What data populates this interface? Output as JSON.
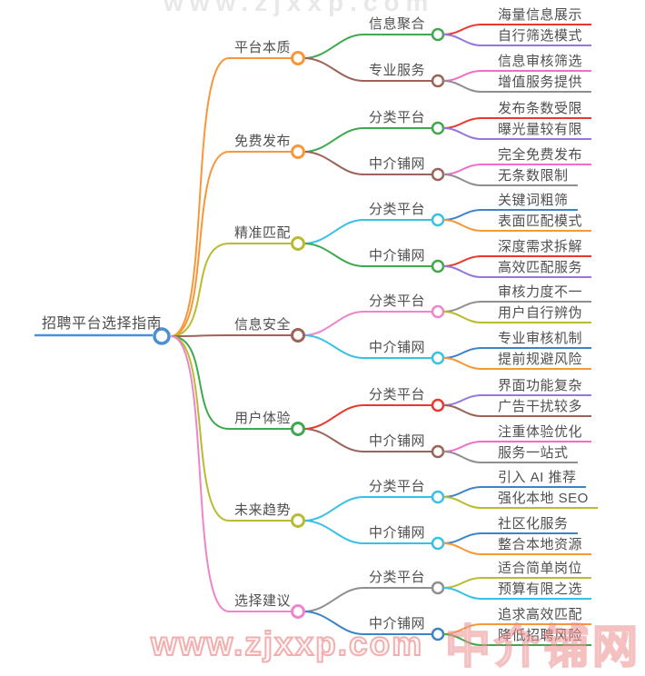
{
  "watermark_top": "www.zjxxp.com",
  "watermark_bottom_url": "www.zjxxp.com",
  "watermark_bottom_brand": "中介铺网",
  "colors": {
    "rootblue": "#4a90d2",
    "orange": "#f8973a",
    "olive": "#b9bc30",
    "brown": "#9d6258",
    "green": "#3fa94e",
    "cyan": "#3ac0e4",
    "magenta": "#ee85cc",
    "red": "#e8392c",
    "purple": "#9478dc",
    "pink": "#f06ec8",
    "gray": "#8f8f8f",
    "blue": "#3c83c8"
  },
  "root": {
    "label": "招聘平台选择指南",
    "color": "rootblue"
  },
  "branches": [
    {
      "label": "平台本质",
      "color": "orange",
      "children": [
        {
          "label": "信息聚合",
          "color": "green",
          "leaves": [
            {
              "label": "海量信息展示",
              "color": "red"
            },
            {
              "label": "自行筛选模式",
              "color": "purple"
            }
          ]
        },
        {
          "label": "专业服务",
          "color": "brown",
          "leaves": [
            {
              "label": "信息审核筛选",
              "color": "pink"
            },
            {
              "label": "增值服务提供",
              "color": "gray"
            }
          ]
        }
      ]
    },
    {
      "label": "免费发布",
      "color": "orange",
      "children": [
        {
          "label": "分类平台",
          "color": "green",
          "leaves": [
            {
              "label": "发布条数受限",
              "color": "red"
            },
            {
              "label": "曝光量较有限",
              "color": "purple"
            }
          ]
        },
        {
          "label": "中介铺网",
          "color": "brown",
          "leaves": [
            {
              "label": "完全免费发布",
              "color": "pink"
            },
            {
              "label": "无条数限制",
              "color": "gray"
            }
          ]
        }
      ]
    },
    {
      "label": "精准匹配",
      "color": "olive",
      "children": [
        {
          "label": "分类平台",
          "color": "cyan",
          "leaves": [
            {
              "label": "关键词粗筛",
              "color": "blue"
            },
            {
              "label": "表面匹配模式",
              "color": "orange"
            }
          ]
        },
        {
          "label": "中介铺网",
          "color": "green",
          "leaves": [
            {
              "label": "深度需求拆解",
              "color": "red"
            },
            {
              "label": "高效匹配服务",
              "color": "purple"
            }
          ]
        }
      ]
    },
    {
      "label": "信息安全",
      "color": "brown",
      "children": [
        {
          "label": "分类平台",
          "color": "magenta",
          "leaves": [
            {
              "label": "审核力度不一",
              "color": "gray"
            },
            {
              "label": "用户自行辨伪",
              "color": "olive"
            }
          ]
        },
        {
          "label": "中介铺网",
          "color": "cyan",
          "leaves": [
            {
              "label": "专业审核机制",
              "color": "blue"
            },
            {
              "label": "提前规避风险",
              "color": "orange"
            }
          ]
        }
      ]
    },
    {
      "label": "用户体验",
      "color": "green",
      "children": [
        {
          "label": "分类平台",
          "color": "red",
          "leaves": [
            {
              "label": "界面功能复杂",
              "color": "purple"
            },
            {
              "label": "广告干扰较多",
              "color": "brown"
            }
          ]
        },
        {
          "label": "中介铺网",
          "color": "brown",
          "leaves": [
            {
              "label": "注重体验优化",
              "color": "pink"
            },
            {
              "label": "服务一站式",
              "color": "gray"
            }
          ]
        }
      ]
    },
    {
      "label": "未来趋势",
      "color": "olive",
      "children": [
        {
          "label": "分类平台",
          "color": "cyan",
          "leaves": [
            {
              "label": "引入 AI 推荐",
              "color": "blue"
            },
            {
              "label": "强化本地 SEO",
              "color": "olive"
            }
          ]
        },
        {
          "label": "中介铺网",
          "color": "cyan",
          "leaves": [
            {
              "label": "社区化服务",
              "color": "blue"
            },
            {
              "label": "整合本地资源",
              "color": "orange"
            }
          ]
        }
      ]
    },
    {
      "label": "选择建议",
      "color": "magenta",
      "children": [
        {
          "label": "分类平台",
          "color": "gray",
          "leaves": [
            {
              "label": "适合简单岗位",
              "color": "olive"
            },
            {
              "label": "预算有限之选",
              "color": "cyan"
            }
          ]
        },
        {
          "label": "中介铺网",
          "color": "blue",
          "leaves": [
            {
              "label": "追求高效匹配",
              "color": "orange"
            },
            {
              "label": "降低招聘风险",
              "color": "green"
            }
          ]
        }
      ]
    }
  ]
}
